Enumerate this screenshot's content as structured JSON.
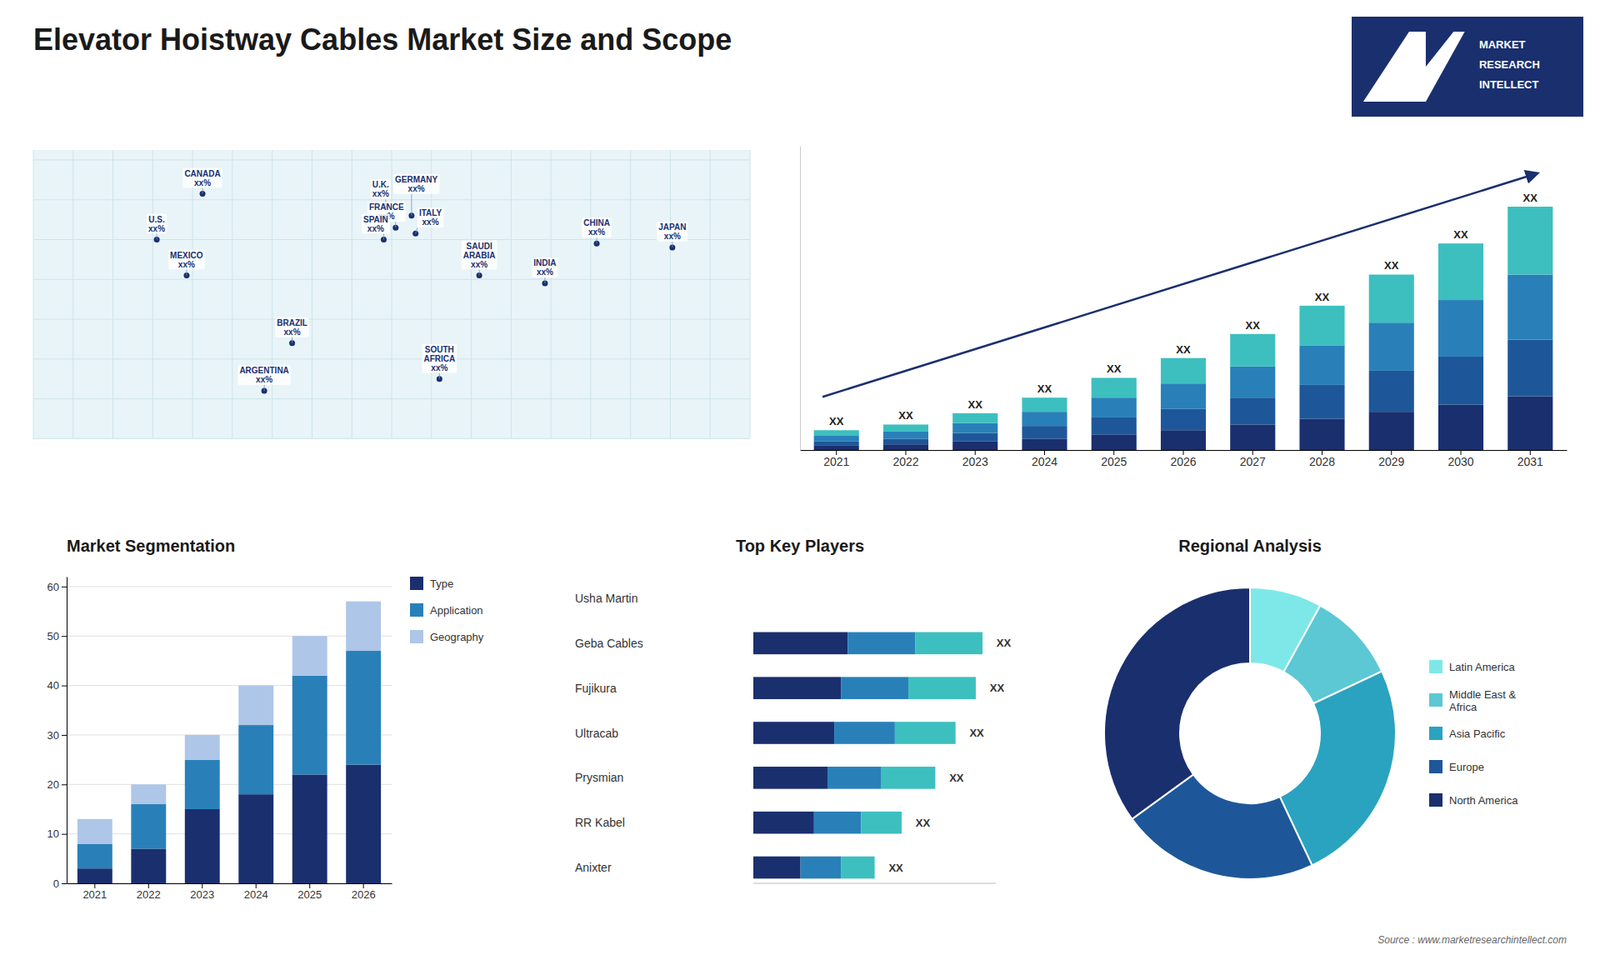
{
  "chart_data": [
    {
      "type": "bar",
      "stacked": true,
      "title": "Elevator Hoistway Cables Market Size and Scope",
      "categories": [
        "2021",
        "2022",
        "2023",
        "2024",
        "2025",
        "2026",
        "2027",
        "2028",
        "2029",
        "2030",
        "2031"
      ],
      "series": [
        {
          "color": "#1a2f6e",
          "values": [
            1.5,
            2,
            3,
            4,
            5.5,
            7,
            9,
            11,
            13.5,
            16,
            19
          ]
        },
        {
          "color": "#1e5799",
          "values": [
            1.5,
            2,
            3,
            4.5,
            6,
            7.5,
            9.5,
            12,
            14.5,
            17,
            20
          ]
        },
        {
          "color": "#2980b9",
          "values": [
            2,
            2.5,
            3.5,
            5,
            7,
            9,
            11,
            14,
            17,
            20,
            23
          ]
        },
        {
          "color": "#3dbfbf",
          "values": [
            2,
            2.5,
            3.5,
            5,
            7,
            9,
            11.5,
            14,
            17,
            20,
            24
          ],
          "value_labels": [
            "XX",
            "XX",
            "XX",
            "XX",
            "XX",
            "XX",
            "XX",
            "XX",
            "XX",
            "XX",
            "XX"
          ]
        }
      ],
      "ylim": [
        0,
        107.5
      ],
      "tick_labels": "x",
      "grid": false,
      "annotations": [
        "Source : www.marketresearchintellect.com",
        "MARKET",
        "RESEARCH",
        "INTELLECT"
      ]
    },
    {
      "type": "map",
      "xlim": [
        -180,
        180
      ],
      "ylim": [
        -60,
        85
      ],
      "labels": [
        {
          "label": "CANADA\nxx%",
          "x": -95,
          "y": 63
        },
        {
          "label": "U.S.\nxx%",
          "x": -118,
          "y": 40
        },
        {
          "label": "MEXICO\nxx%",
          "x": -103,
          "y": 22
        },
        {
          "label": "BRAZIL\nxx%",
          "x": -50,
          "y": -12
        },
        {
          "label": "ARGENTINA\nxx%",
          "x": -64,
          "y": -36
        },
        {
          "label": "U.K.\nxx%",
          "x": -3,
          "y": 57
        },
        {
          "label": "FRANCE\nxx%",
          "x": 2,
          "y": 46
        },
        {
          "label": "SPAIN\nxx%",
          "x": -4,
          "y": 40
        },
        {
          "label": "GERMANY\nxx%",
          "x": 10,
          "y": 52
        },
        {
          "label": "ITALY\nxx%",
          "x": 12,
          "y": 43
        },
        {
          "label": "SAUDI\nARABIA\nxx%",
          "x": 44,
          "y": 22
        },
        {
          "label": "SOUTH\nAFRICA\nxx%",
          "x": 24,
          "y": -30
        },
        {
          "label": "CHINA\nxx%",
          "x": 103,
          "y": 38
        },
        {
          "label": "INDIA\nxx%",
          "x": 77,
          "y": 18
        },
        {
          "label": "JAPAN\nxx%",
          "x": 141,
          "y": 36
        }
      ]
    },
    {
      "type": "bar",
      "stacked": true,
      "title": "Market Segmentation",
      "categories": [
        "2021",
        "2022",
        "2023",
        "2024",
        "2025",
        "2026"
      ],
      "series": [
        {
          "name": "Type",
          "color": "#1a2f6e",
          "values": [
            3,
            7,
            15,
            18,
            22,
            24
          ]
        },
        {
          "name": "Application",
          "color": "#2980b9",
          "values": [
            5,
            9,
            10,
            14,
            20,
            23
          ]
        },
        {
          "name": "Geography",
          "color": "#aec6e8",
          "values": [
            5,
            4,
            5,
            8,
            8,
            10
          ]
        }
      ],
      "ylim": [
        0,
        62
      ],
      "yticks": [
        0,
        10,
        20,
        30,
        40,
        50,
        60
      ],
      "grid": true,
      "legend": "right"
    },
    {
      "type": "bar",
      "orientation": "horizontal",
      "stacked": true,
      "title": "Top Key Players",
      "categories": [
        "Usha Martin",
        "Geba Cables",
        "Fujikura",
        "Ultracab",
        "Prysmian",
        "RR Kabel",
        "Anixter"
      ],
      "series": [
        {
          "color": "#1a2f6e",
          "values": [
            0,
            7,
            6.5,
            6,
            5.5,
            4.5,
            3.5
          ]
        },
        {
          "color": "#2980b9",
          "values": [
            0,
            5,
            5,
            4.5,
            4,
            3.5,
            3
          ]
        },
        {
          "color": "#3dbfbf",
          "values": [
            0,
            5,
            5,
            4.5,
            4,
            3,
            2.5
          ],
          "value_labels": [
            null,
            "XX",
            "XX",
            "XX",
            "XX",
            "XX",
            "XX"
          ]
        }
      ],
      "xlim": [
        0,
        18
      ],
      "tick_labels": "y"
    },
    {
      "type": "pie",
      "title": "Regional Analysis",
      "categories": [
        "Latin America",
        "Middle East &\nAfrica",
        "Asia Pacific",
        "Europe",
        "North America"
      ],
      "values": [
        8,
        10,
        25,
        22,
        35
      ],
      "colors": [
        "#7ee8e8",
        "#5bc8d4",
        "#2aa3c0",
        "#1e5799",
        "#1a2f6e"
      ],
      "legend": "right"
    }
  ]
}
